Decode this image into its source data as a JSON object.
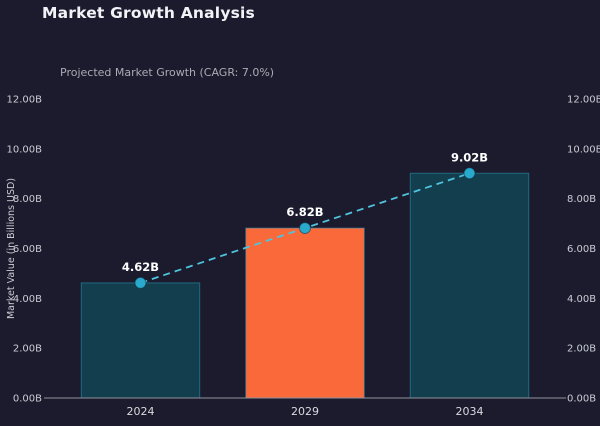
{
  "chart_data": {
    "type": "bar",
    "title": "Market Growth Analysis",
    "subtitle": "Projected Market Growth (CAGR: 7.0%)",
    "categories": [
      "2024",
      "2029",
      "2034"
    ],
    "values": [
      4.62,
      6.82,
      9.02
    ],
    "value_labels": [
      "4.62B",
      "6.82B",
      "9.02B"
    ],
    "ylabel": "Market Value (in Billions USD)",
    "xlabel": "",
    "ylim": [
      0,
      12
    ],
    "ytick_step": 2,
    "ytick_suffix": "B",
    "grid": false,
    "legend": "none",
    "secondary_axis_right": true,
    "background": "#1b1b2d",
    "bar_colors": [
      "#123e4d",
      "#f9693a",
      "#123e4d"
    ],
    "bar_stroke": "#2f97b8",
    "trend_line": {
      "style": "dashed",
      "color": "#4fc3dd",
      "marker_color": "#29a9cc"
    }
  }
}
